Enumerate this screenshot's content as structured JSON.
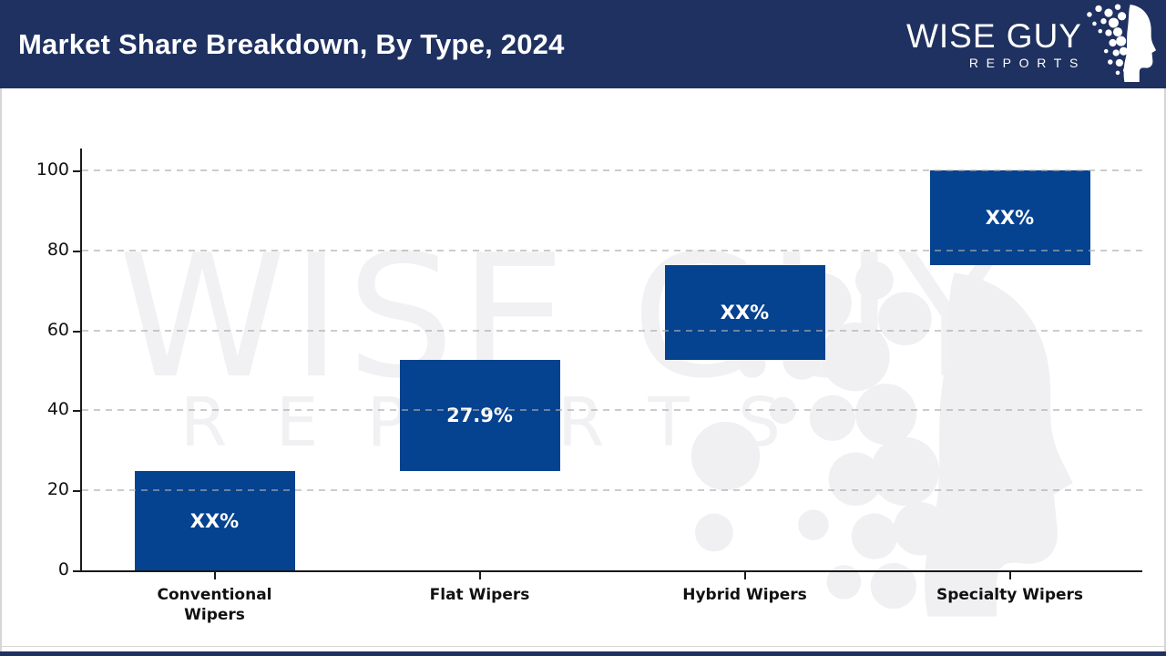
{
  "header": {
    "title": "Market Share Breakdown, By Type, 2024",
    "logo": {
      "line1": "WISE GUY",
      "line2": "REPORTS",
      "icon": "dotted-head-profile-icon"
    }
  },
  "watermark": {
    "line1": "WISE GUY",
    "line2": "REPORTS",
    "icon": "dotted-head-profile-watermark"
  },
  "chart_data": {
    "type": "bar",
    "subtype": "floating-waterfall",
    "title": "Market Share Breakdown, By Type, 2024",
    "categories": [
      "Conventional Wipers",
      "Flat Wipers",
      "Hybrid Wipers",
      "Specialty Wipers"
    ],
    "category_label_lines": [
      [
        "Conventional",
        "Wipers"
      ],
      [
        "Flat Wipers"
      ],
      [
        "Hybrid Wipers"
      ],
      [
        "Specialty Wipers"
      ]
    ],
    "segments": [
      {
        "category": "Conventional Wipers",
        "start": 0,
        "end": 24.8,
        "label": "XX%"
      },
      {
        "category": "Flat Wipers",
        "start": 24.8,
        "end": 52.7,
        "label": "27.9%"
      },
      {
        "category": "Hybrid Wipers",
        "start": 52.7,
        "end": 76.2,
        "label": "XX%"
      },
      {
        "category": "Specialty Wipers",
        "start": 76.2,
        "end": 100,
        "label": "XX%"
      }
    ],
    "xlabel": "",
    "ylabel": "",
    "ylim": [
      0,
      105
    ],
    "yticks": [
      0,
      20,
      40,
      60,
      80,
      100
    ],
    "grid": "dashed-horizontal",
    "legend": "none",
    "bar_color": "#05428f",
    "bar_label_color": "#ffffff"
  },
  "colors": {
    "header_bg": "#1f3160",
    "footer_bg": "#1f3160",
    "bar_blue": "#05428f",
    "watermark_gray": "#f1f1f4",
    "grid_gray": "#d9d9d9",
    "axis_black": "#1a1a1a",
    "canvas_border": "#d6d6d6"
  }
}
